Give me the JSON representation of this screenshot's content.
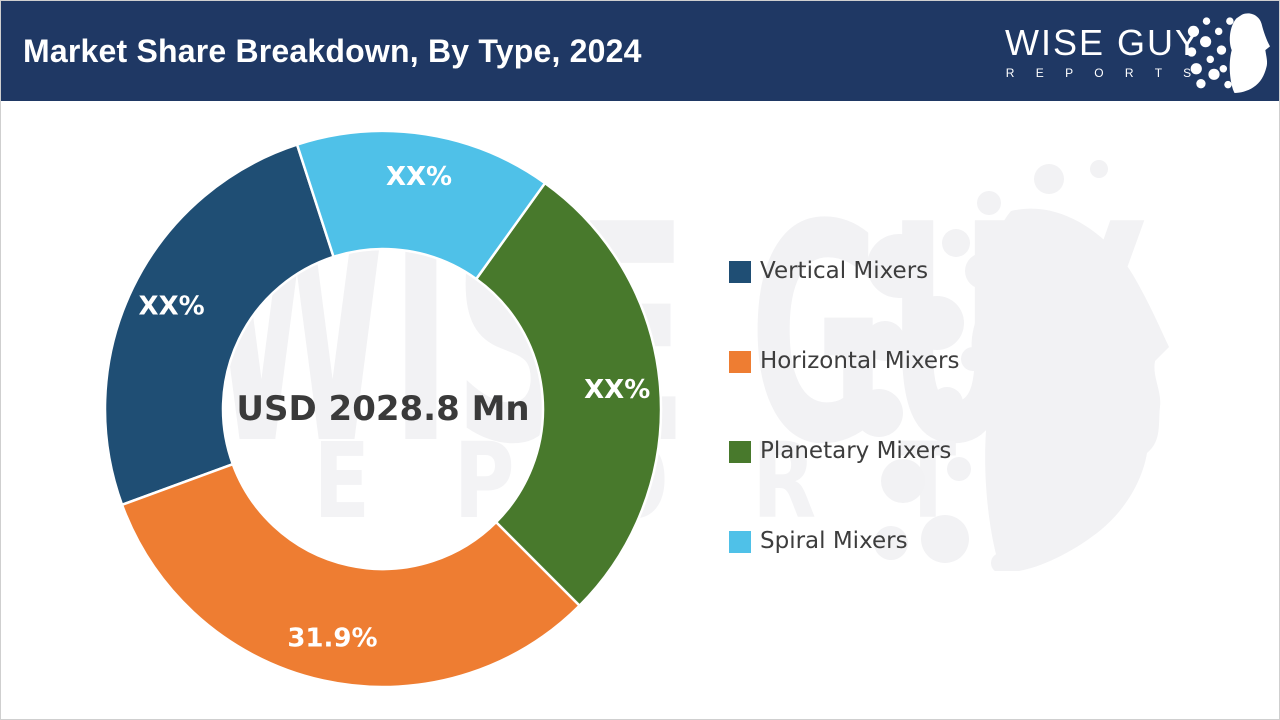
{
  "header": {
    "title": "Market Share Breakdown, By Type, 2024",
    "logo": {
      "line1": "WISE GUY",
      "line2": "R E P O R T S"
    }
  },
  "watermark": {
    "line1": "WISE GUY",
    "line2": "R E P O R T S"
  },
  "chart_data": {
    "type": "donut",
    "title": "Market Share Breakdown, By Type, 2024",
    "center_label": "USD 2028.8 Mn",
    "start_angle_deg": 108,
    "direction": "counterclockwise",
    "legend_position": "right",
    "inner_radius_ratio": 0.575,
    "slices": [
      {
        "name": "Vertical Mixers",
        "display_label": "XX%",
        "value_pct_est": 25.6,
        "color": "#1f4e74"
      },
      {
        "name": "Horizontal Mixers",
        "display_label": "31.9%",
        "value_pct_est": 31.9,
        "color": "#ee7d32"
      },
      {
        "name": "Planetary Mixers",
        "display_label": "XX%",
        "value_pct_est": 27.6,
        "color": "#48792c"
      },
      {
        "name": "Spiral Mixers",
        "display_label": "XX%",
        "value_pct_est": 14.9,
        "color": "#4fc1e8"
      }
    ],
    "colors": {
      "header_bar": "#1f3864",
      "label_text": "#ffffff",
      "center_text": "#3a3a3a",
      "watermark": "#f2f2f4"
    }
  }
}
